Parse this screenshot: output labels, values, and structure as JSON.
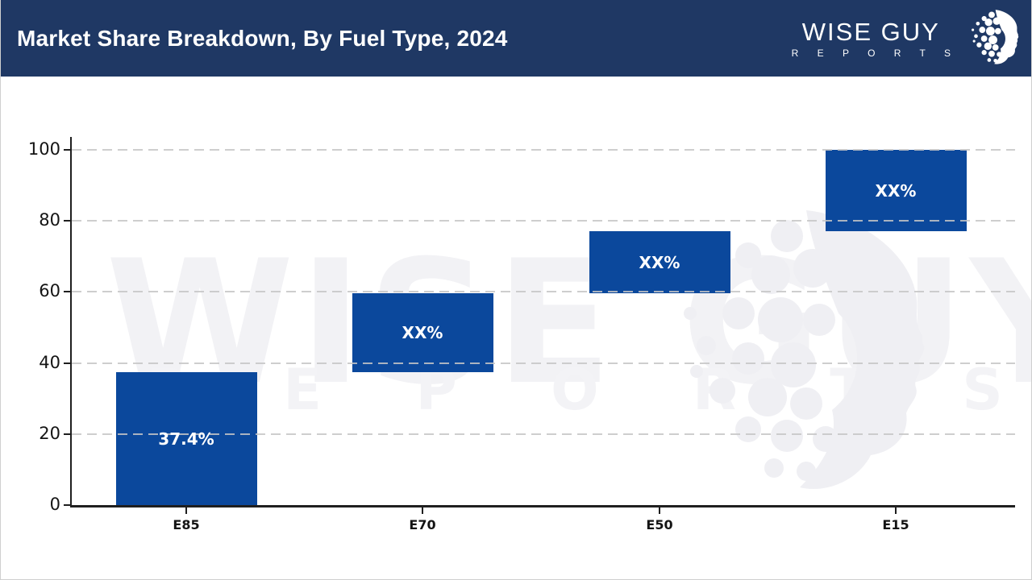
{
  "header": {
    "title": "Market Share Breakdown, By Fuel Type, 2024",
    "logo": {
      "line1": "WISE GUY",
      "line2": "R E P O R T S"
    }
  },
  "watermark": {
    "line1": "WISE GUY",
    "line2": "R E P O R T S"
  },
  "colors": {
    "header_bg": "#1f3864",
    "bar": "#0b489c",
    "axis": "#1f1f1f",
    "gridline": "#c6c6c6",
    "bar_label": "#ffffff",
    "watermark": "#f2f2f5"
  },
  "chart_data": {
    "type": "bar",
    "subtype": "waterfall",
    "title": "Market Share Breakdown, By Fuel Type, 2024",
    "categories": [
      "E85",
      "E70",
      "E50",
      "E15"
    ],
    "bars": [
      {
        "category": "E85",
        "start": 0,
        "end": 37.4,
        "label": "37.4%"
      },
      {
        "category": "E70",
        "start": 37.4,
        "end": 59.6,
        "label": "XX%"
      },
      {
        "category": "E50",
        "start": 59.6,
        "end": 77.0,
        "label": "XX%"
      },
      {
        "category": "E15",
        "start": 77.0,
        "end": 100,
        "label": "XX%"
      }
    ],
    "xlabel": "",
    "ylabel": "",
    "yticks": [
      0,
      20,
      40,
      60,
      80,
      100
    ],
    "ylim": [
      0,
      100
    ],
    "grid": "horizontal-dashed",
    "legend": "none",
    "bar_color": "#0b489c"
  }
}
